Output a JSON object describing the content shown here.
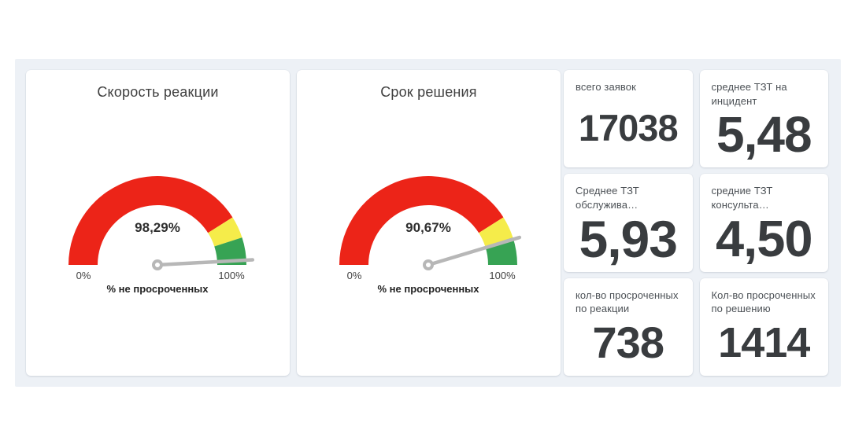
{
  "page": {
    "background": "#ffffff",
    "canvas_background": "#edf1f6",
    "card_background": "#ffffff"
  },
  "chart_data": [
    {
      "type": "gauge",
      "title": "Скорость реакции",
      "value": 98.29,
      "value_label": "98,29%",
      "min": 0,
      "max": 100,
      "min_label": "0%",
      "max_label": "100%",
      "axis_label": "% не просроченных",
      "segments": [
        {
          "from": 0,
          "to": 82,
          "color": "#ec2418"
        },
        {
          "from": 82,
          "to": 90,
          "color": "#f5ec4a"
        },
        {
          "from": 90,
          "to": 100,
          "color": "#37a354"
        }
      ],
      "needle_color": "#b7b7b7"
    },
    {
      "type": "gauge",
      "title": "Срок решения",
      "value": 90.67,
      "value_label": "90,67%",
      "min": 0,
      "max": 100,
      "min_label": "0%",
      "max_label": "100%",
      "axis_label": "% не просроченных",
      "segments": [
        {
          "from": 0,
          "to": 82,
          "color": "#ec2418"
        },
        {
          "from": 82,
          "to": 90,
          "color": "#f5ec4a"
        },
        {
          "from": 90,
          "to": 100,
          "color": "#37a354"
        }
      ],
      "needle_color": "#b7b7b7"
    },
    {
      "type": "table",
      "columns": [
        "label",
        "value"
      ],
      "rows": [
        {
          "label": "всего заявок",
          "value": "17038"
        },
        {
          "label": "среднее ТЗТ на инцидент",
          "value": "5,48"
        },
        {
          "label": "Среднее ТЗТ обслужива…",
          "value": "5,93"
        },
        {
          "label": "средние ТЗТ консульта…",
          "value": "4,50"
        },
        {
          "label": "кол-во просроченных по реакции",
          "value": "738"
        },
        {
          "label": "Кол-во просроченных по решению",
          "value": "1414"
        }
      ]
    }
  ]
}
